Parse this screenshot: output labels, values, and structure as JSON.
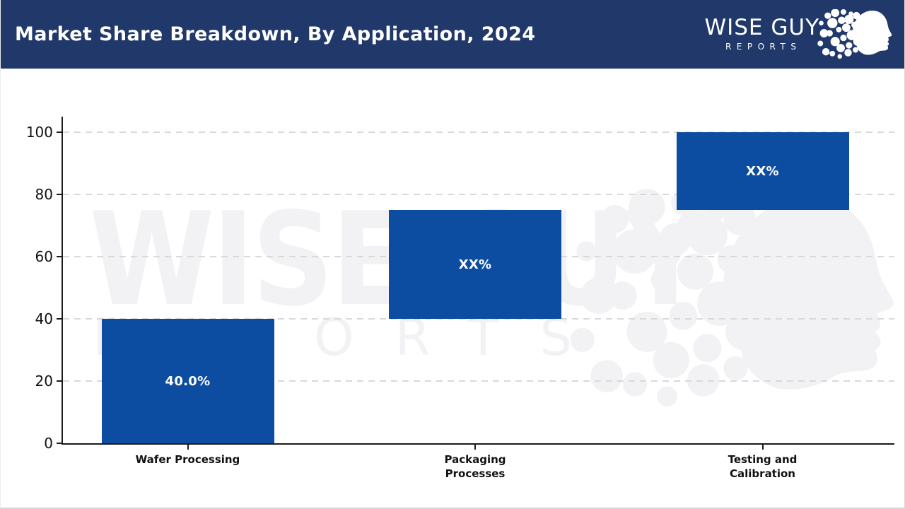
{
  "header": {
    "title": "Market Share Breakdown, By Application, 2024",
    "brand": {
      "name": "WISE GUY",
      "sub": "REPORTS"
    }
  },
  "watermark": {
    "name": "WISE GUY",
    "sub": "REPORTS"
  },
  "chart_data": {
    "type": "bar",
    "subtype": "waterfall",
    "title": "Market Share Breakdown, By Application, 2024",
    "categories": [
      "Wafer Processing",
      "Packaging\nProcesses",
      "Testing and\nCalibration"
    ],
    "bars": [
      {
        "category": "Wafer Processing",
        "start": 0,
        "end": 40,
        "label": "40.0%"
      },
      {
        "category": "Packaging Processes",
        "start": 40,
        "end": 75,
        "label": "XX%"
      },
      {
        "category": "Testing and Calibration",
        "start": 75,
        "end": 100,
        "label": "XX%"
      }
    ],
    "xlabel": "",
    "ylabel": "",
    "ylim": [
      0,
      105
    ],
    "yticks": [
      0,
      20,
      40,
      60,
      80,
      100
    ],
    "grid": "horizontal-dashed",
    "legend": "none",
    "colors": {
      "bar": "#0d4da1",
      "bar_label": "#ffffff",
      "header": "#20386a",
      "grid": "#d9d9d9",
      "axis": "#1a1a1a",
      "watermark": "#f2f2f4"
    }
  }
}
